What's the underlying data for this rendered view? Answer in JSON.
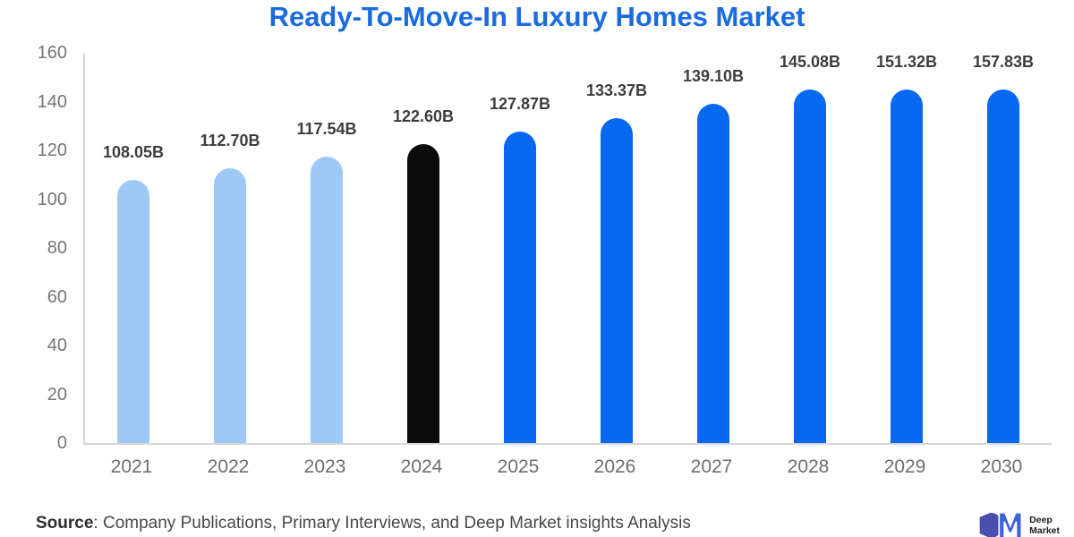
{
  "chart_data": {
    "type": "bar",
    "title": "Ready-To-Move-In Luxury Homes Market",
    "categories": [
      "2021",
      "2022",
      "2023",
      "2024",
      "2025",
      "2026",
      "2027",
      "2028",
      "2029",
      "2030"
    ],
    "values": [
      108.05,
      112.7,
      117.54,
      122.6,
      127.87,
      133.37,
      139.1,
      145.08,
      151.32,
      157.83
    ],
    "value_labels": [
      "108.05B",
      "112.70B",
      "117.54B",
      "122.60B",
      "127.87B",
      "133.37B",
      "139.10B",
      "145.08B",
      "151.32B",
      "157.83B"
    ],
    "bar_colors": [
      "#9EC9F7",
      "#9EC9F7",
      "#9EC9F7",
      "#0B0B0B",
      "#0768F2",
      "#0768F2",
      "#0768F2",
      "#0768F2",
      "#0768F2",
      "#0768F2"
    ],
    "xlabel": "",
    "ylabel": "",
    "ylim": [
      0,
      160
    ],
    "yticks": [
      0,
      20,
      40,
      60,
      80,
      100,
      120,
      140,
      160
    ],
    "grid": false,
    "legend": "none"
  },
  "colors": {
    "title": "#1A6BE0",
    "historical_bar": "#9EC9F7",
    "base_year_bar": "#0B0B0B",
    "forecast_bar": "#0768F2",
    "axis_line": "#D6D6D6",
    "tick_label": "#757575",
    "value_label": "#3D3D3D",
    "logo_d": "#4A4FAE",
    "logo_m": "#3E63D9"
  },
  "footer": {
    "source_label": "Source",
    "source_text": ": Company Publications, Primary Interviews, and Deep Market insights Analysis"
  },
  "logo": {
    "line1": "Deep",
    "line2": "Market"
  }
}
